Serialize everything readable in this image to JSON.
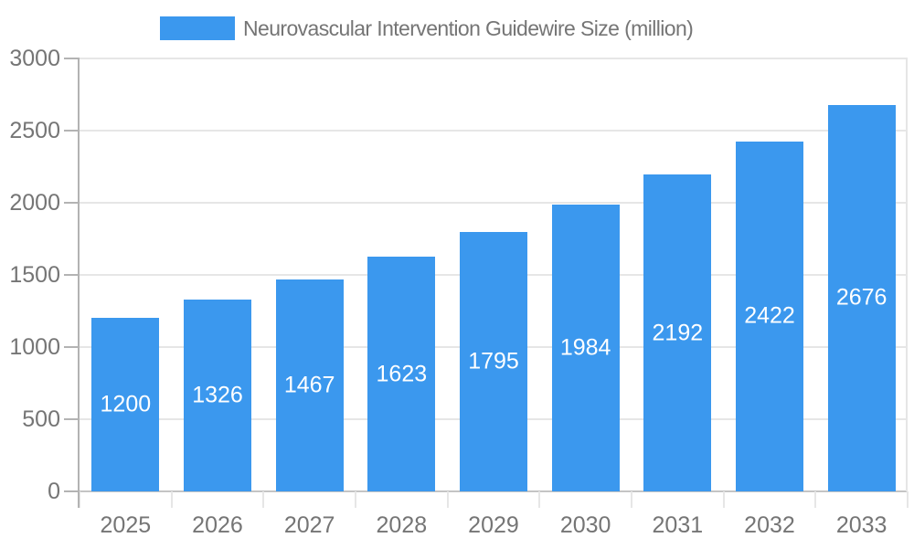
{
  "chart_data": {
    "type": "bar",
    "title": "Neurovascular Intervention Guidewire Size (million)",
    "categories": [
      "2025",
      "2026",
      "2027",
      "2028",
      "2029",
      "2030",
      "2031",
      "2032",
      "2033"
    ],
    "values": [
      1200,
      1326,
      1467,
      1623,
      1795,
      1984,
      2192,
      2422,
      2676
    ],
    "xlabel": "",
    "ylabel": "",
    "ylim": [
      0,
      3000
    ],
    "y_ticks": [
      0,
      500,
      1000,
      1500,
      2000,
      2500,
      3000
    ],
    "grid": true,
    "legend_position": "top-left",
    "bar_labels_inside": true
  },
  "colors": {
    "bar": "#3b98ee",
    "grid": "#e6e6e6",
    "zero_line": "#c4c4c4",
    "axis": "#b3b3b3",
    "text": "#757575",
    "bar_label": "#ffffff",
    "background": "#ffffff"
  }
}
